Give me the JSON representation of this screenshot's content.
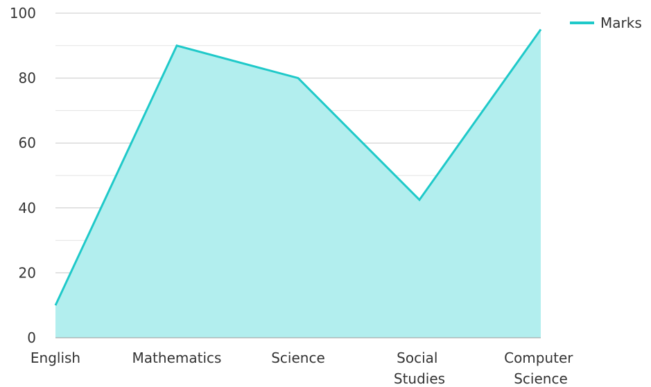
{
  "chart_data": {
    "type": "area",
    "categories": [
      "English",
      "Mathematics",
      "Science",
      "Social Studies",
      "Computer Science"
    ],
    "series": [
      {
        "name": "Marks",
        "color": "#1fc9c9",
        "fill": "#b2eeee",
        "values": [
          10,
          90,
          80,
          42.5,
          95
        ]
      }
    ],
    "ylim": [
      0,
      100
    ],
    "yticks": [
      0,
      20,
      40,
      60,
      80,
      100
    ],
    "y_minor_ticks": [
      10,
      30,
      50,
      70,
      90
    ],
    "grid": true,
    "legend": "top-right"
  }
}
